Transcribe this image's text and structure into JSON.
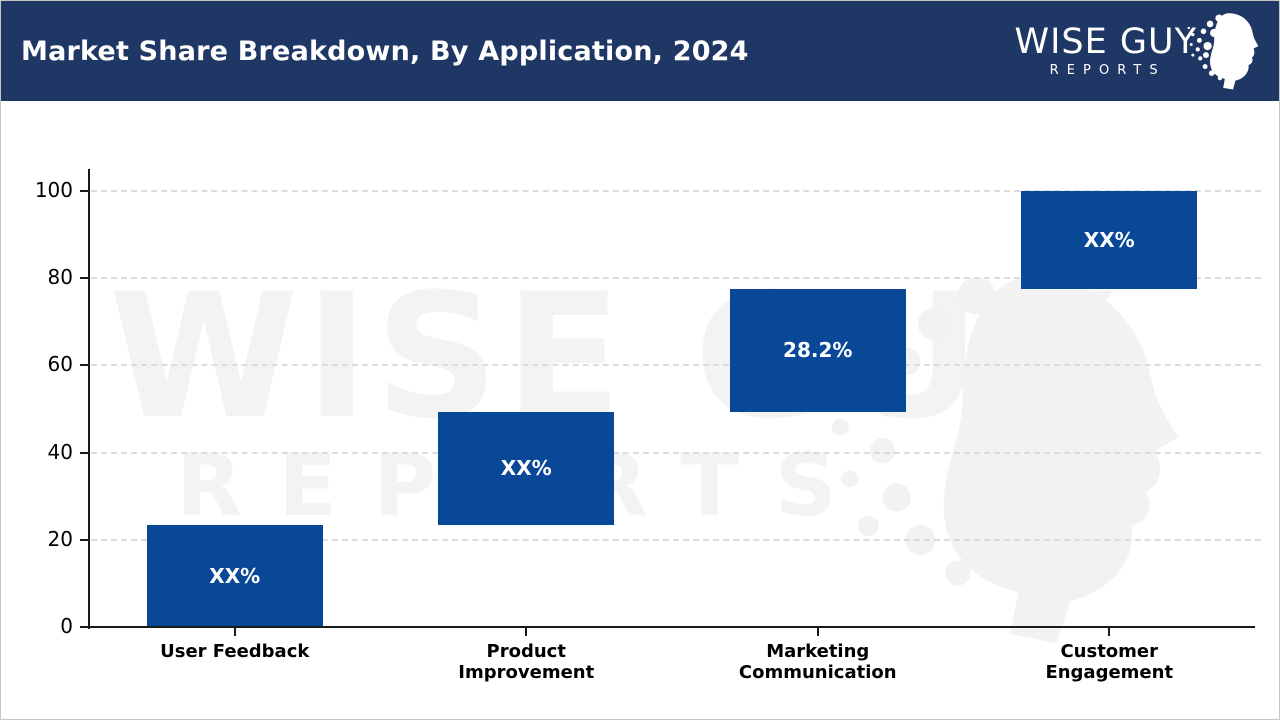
{
  "header": {
    "title": "Market Share Breakdown, By Application, 2024",
    "logo": {
      "line1": "WISE GUY",
      "line2": "REPORTS"
    }
  },
  "watermark": {
    "line1": "WISE GUY",
    "line2": "REPORTS"
  },
  "colors": {
    "header_bg": "#1f3765",
    "bar": "#084897",
    "grid": "#dcdcdc",
    "axis": "#1a1a1a",
    "watermark": "#f3f3f3"
  },
  "chart_data": {
    "type": "bar",
    "subtype": "waterfall",
    "title": "Market Share Breakdown, By Application, 2024",
    "xlabel": "",
    "ylabel": "",
    "ylim": [
      0,
      100
    ],
    "yticks": [
      0,
      20,
      40,
      60,
      80,
      100
    ],
    "grid": "horizontal-dashed",
    "legend": "none",
    "categories": [
      "User Feedback",
      "Product Improvement",
      "Marketing Communication",
      "Customer Engagement"
    ],
    "bars": [
      {
        "category": "User Feedback",
        "label_lines": [
          "User Feedback"
        ],
        "start": 0,
        "end": 23.5,
        "value_label": "XX%"
      },
      {
        "category": "Product Improvement",
        "label_lines": [
          "Product",
          "Improvement"
        ],
        "start": 23.5,
        "end": 49.4,
        "value_label": "XX%"
      },
      {
        "category": "Marketing Communication",
        "label_lines": [
          "Marketing",
          "Communication"
        ],
        "start": 49.4,
        "end": 77.6,
        "value_label": "28.2%"
      },
      {
        "category": "Customer Engagement",
        "label_lines": [
          "Customer",
          "Engagement"
        ],
        "start": 77.6,
        "end": 100,
        "value_label": "XX%"
      }
    ]
  }
}
